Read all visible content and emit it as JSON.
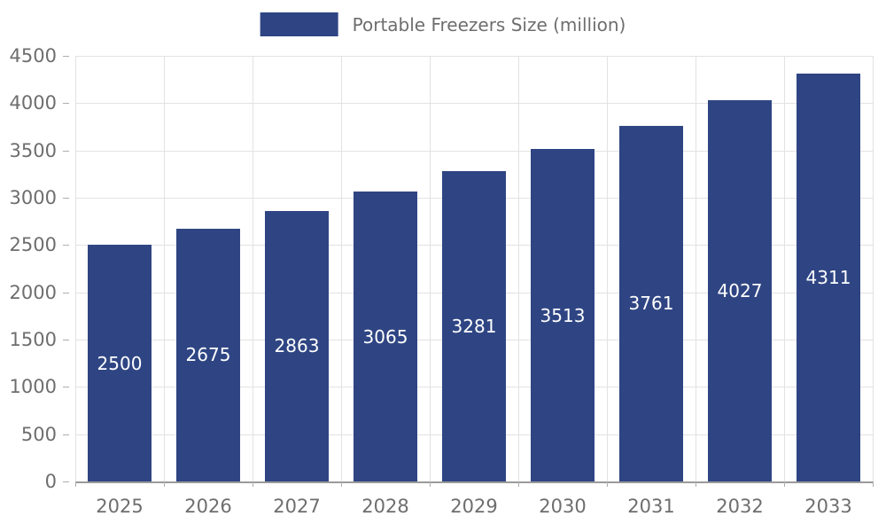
{
  "legend": {
    "label": "Portable Freezers Size (million)"
  },
  "colors": {
    "bar": "#2f4583",
    "axis_text": "#6e6e6e",
    "grid": "#e2e2e2",
    "value_label": "#ffffff"
  },
  "chart_data": {
    "type": "bar",
    "title": "Portable Freezers Size (million)",
    "categories": [
      "2025",
      "2026",
      "2027",
      "2028",
      "2029",
      "2030",
      "2031",
      "2032",
      "2033"
    ],
    "values": [
      2500,
      2675,
      2863,
      3065,
      3281,
      3513,
      3761,
      4027,
      4311
    ],
    "xlabel": "",
    "ylabel": "",
    "ylim": [
      0,
      4500
    ],
    "yticks": [
      0,
      500,
      1000,
      1500,
      2000,
      2500,
      3000,
      3500,
      4000,
      4500
    ],
    "grid": true,
    "legend_position": "top",
    "value_labels": "inside-center",
    "bar_width_fraction": 0.72
  }
}
